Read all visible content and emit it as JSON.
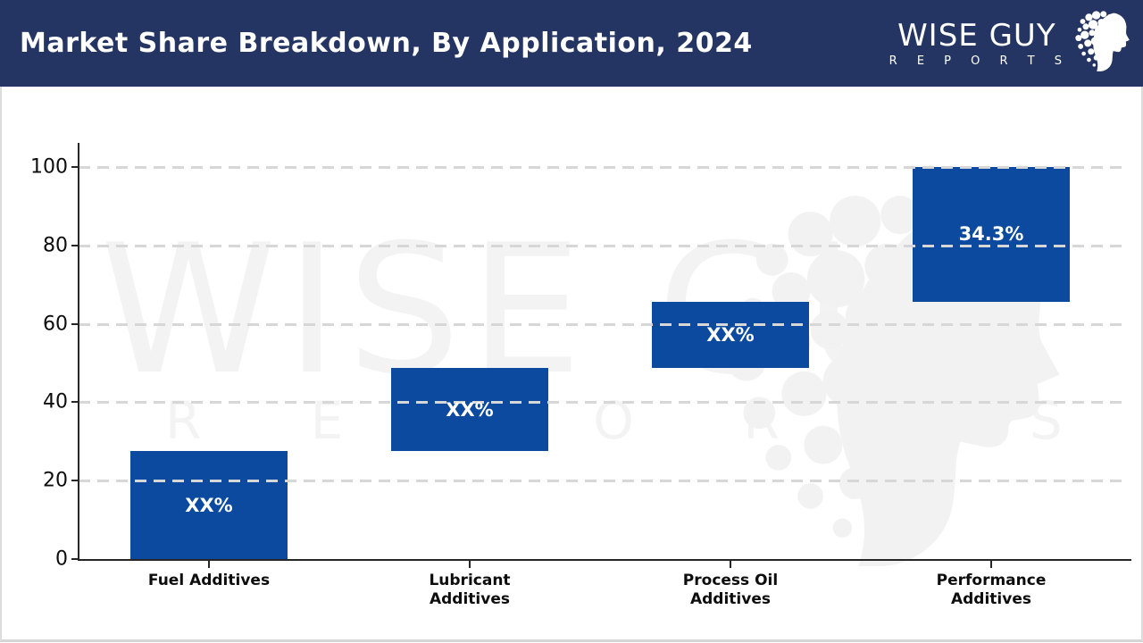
{
  "header": {
    "title": "Market Share Breakdown, By Application, 2024",
    "logo": {
      "brand": "WISE GUY",
      "sub": "R E P O R T S"
    }
  },
  "watermark": {
    "brand": "WISE GUY",
    "sub": "R E P O R T S"
  },
  "chart_data": {
    "type": "bar",
    "subtype": "floating-segment-breakdown",
    "title": "Market Share Breakdown, By Application, 2024",
    "categories": [
      "Fuel Additives",
      "Lubricant Additives",
      "Process Oil Additives",
      "Performance Additives"
    ],
    "segments": [
      {
        "category": "Fuel Additives",
        "label": "XX%",
        "start": 0,
        "end": 27.5
      },
      {
        "category": "Lubricant Additives",
        "label": "XX%",
        "start": 27.5,
        "end": 48.7
      },
      {
        "category": "Process Oil Additives",
        "label": "XX%",
        "start": 48.7,
        "end": 65.7
      },
      {
        "category": "Performance Additives",
        "label": "34.3%",
        "start": 65.7,
        "end": 100
      }
    ],
    "yticks": [
      0,
      20,
      40,
      60,
      80,
      100
    ],
    "ylim": [
      0,
      100
    ],
    "xlabel": "",
    "ylabel": "",
    "grid": "horizontal dashed",
    "legend": "none"
  },
  "colors": {
    "header_bg": "#243563",
    "bar": "#0b4a9e",
    "bar_label": "#ffffff",
    "gridline": "#d7d7d7",
    "axis": "#262626",
    "watermark": "#f3f3f3",
    "frame_border": "#dcdcdc"
  }
}
